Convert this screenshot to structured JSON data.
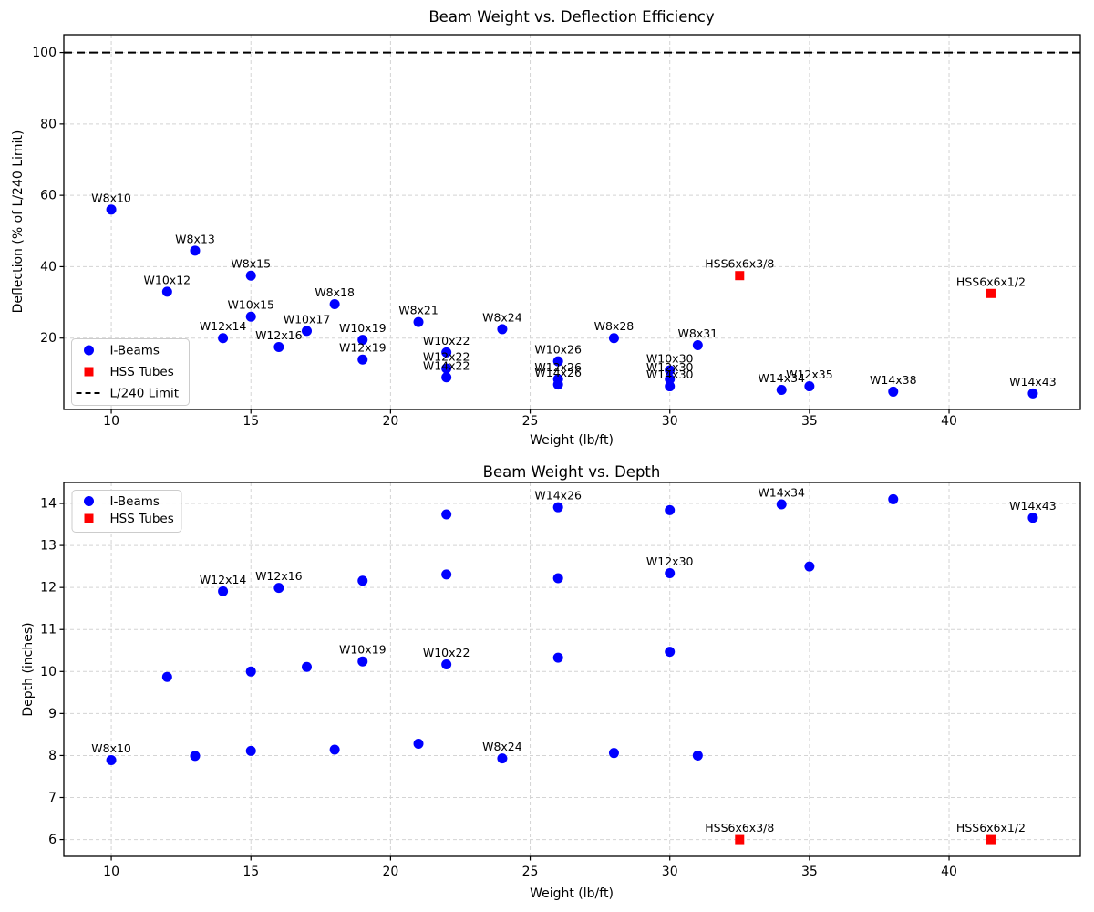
{
  "page": {
    "background": "#ffffff",
    "text_color": "#000000",
    "grid_color": "#d4d4d4",
    "spine_color": "#000000",
    "ibeam_color": "#0000ff",
    "hss_color": "#ff0000"
  },
  "chart_data": [
    {
      "type": "scatter",
      "title": "Beam Weight vs. Deflection Efficiency",
      "xlabel": "Weight (lb/ft)",
      "ylabel": "Deflection (% of L/240 Limit)",
      "xlim": [
        8.3,
        44.7
      ],
      "ylim": [
        0,
        105
      ],
      "xticks": [
        10,
        15,
        20,
        25,
        30,
        35,
        40
      ],
      "yticks": [
        20,
        40,
        60,
        80,
        100
      ],
      "grid": true,
      "legend_position": "lower-left",
      "legend": [
        {
          "label": "I-Beams",
          "marker": "circle",
          "color": "#0000ff"
        },
        {
          "label": "HSS Tubes",
          "marker": "square",
          "color": "#ff0000"
        },
        {
          "label": "L/240 Limit",
          "marker": "dashed-line",
          "color": "#000000"
        }
      ],
      "limit_line": {
        "y": 100,
        "label": "L/240 Limit",
        "style": "dashed",
        "color": "#000000"
      },
      "series": [
        {
          "name": "I-Beams",
          "marker": "circle",
          "color": "#0000ff",
          "points": [
            {
              "label": "W8x10",
              "x": 10,
              "y": 56,
              "show_label": true
            },
            {
              "label": "W10x12",
              "x": 12,
              "y": 33,
              "show_label": true
            },
            {
              "label": "W8x13",
              "x": 13,
              "y": 44.5,
              "show_label": true
            },
            {
              "label": "W12x14",
              "x": 14,
              "y": 20,
              "show_label": true
            },
            {
              "label": "W8x15",
              "x": 15,
              "y": 37.5,
              "show_label": true
            },
            {
              "label": "W10x15",
              "x": 15,
              "y": 26,
              "show_label": true
            },
            {
              "label": "W12x16",
              "x": 16,
              "y": 17.5,
              "show_label": true
            },
            {
              "label": "W10x17",
              "x": 17,
              "y": 22,
              "show_label": true
            },
            {
              "label": "W8x18",
              "x": 18,
              "y": 29.5,
              "show_label": true
            },
            {
              "label": "W10x19",
              "x": 19,
              "y": 19.5,
              "show_label": true
            },
            {
              "label": "W12x19",
              "x": 19,
              "y": 14,
              "show_label": true
            },
            {
              "label": "W8x21",
              "x": 21,
              "y": 24.5,
              "show_label": true
            },
            {
              "label": "W10x22",
              "x": 22,
              "y": 16,
              "show_label": true
            },
            {
              "label": "W12x22",
              "x": 22,
              "y": 11.5,
              "show_label": true
            },
            {
              "label": "W14x22",
              "x": 22,
              "y": 9,
              "show_label": true
            },
            {
              "label": "W8x24",
              "x": 24,
              "y": 22.5,
              "show_label": true
            },
            {
              "label": "W10x26",
              "x": 26,
              "y": 13.5,
              "show_label": true
            },
            {
              "label": "W12x26",
              "x": 26,
              "y": 8.5,
              "show_label": true
            },
            {
              "label": "W14x26",
              "x": 26,
              "y": 7,
              "show_label": true
            },
            {
              "label": "W8x28",
              "x": 28,
              "y": 20,
              "show_label": true
            },
            {
              "label": "W10x30",
              "x": 30,
              "y": 11,
              "show_label": true
            },
            {
              "label": "W12x30",
              "x": 30,
              "y": 8.5,
              "show_label": true
            },
            {
              "label": "W14x30",
              "x": 30,
              "y": 6.5,
              "show_label": true
            },
            {
              "label": "W8x31",
              "x": 31,
              "y": 18,
              "show_label": true
            },
            {
              "label": "W14x34",
              "x": 34,
              "y": 5.5,
              "show_label": true
            },
            {
              "label": "W12x35",
              "x": 35,
              "y": 6.5,
              "show_label": true
            },
            {
              "label": "W14x38",
              "x": 38,
              "y": 5,
              "show_label": true
            },
            {
              "label": "W14x43",
              "x": 43,
              "y": 4.5,
              "show_label": true
            }
          ]
        },
        {
          "name": "HSS Tubes",
          "marker": "square",
          "color": "#ff0000",
          "points": [
            {
              "label": "HSS6x6x3/8",
              "x": 32.5,
              "y": 37.5,
              "show_label": true
            },
            {
              "label": "HSS6x6x1/2",
              "x": 41.5,
              "y": 32.5,
              "show_label": true
            }
          ]
        }
      ]
    },
    {
      "type": "scatter",
      "title": "Beam Weight vs. Depth",
      "xlabel": "Weight (lb/ft)",
      "ylabel": "Depth (inches)",
      "xlim": [
        8.3,
        44.7
      ],
      "ylim": [
        5.6,
        14.5
      ],
      "xticks": [
        10,
        15,
        20,
        25,
        30,
        35,
        40
      ],
      "yticks": [
        6,
        7,
        8,
        9,
        10,
        11,
        12,
        13,
        14
      ],
      "grid": true,
      "legend_position": "upper-left",
      "legend": [
        {
          "label": "I-Beams",
          "marker": "circle",
          "color": "#0000ff"
        },
        {
          "label": "HSS Tubes",
          "marker": "square",
          "color": "#ff0000"
        }
      ],
      "series": [
        {
          "name": "I-Beams",
          "marker": "circle",
          "color": "#0000ff",
          "points": [
            {
              "label": "W8x10",
              "x": 10,
              "y": 7.89,
              "show_label": true
            },
            {
              "label": "W10x12",
              "x": 12,
              "y": 9.87,
              "show_label": false
            },
            {
              "label": "W8x13",
              "x": 13,
              "y": 7.99,
              "show_label": false
            },
            {
              "label": "W12x14",
              "x": 14,
              "y": 11.91,
              "show_label": true
            },
            {
              "label": "W8x15",
              "x": 15,
              "y": 8.11,
              "show_label": false
            },
            {
              "label": "W10x15",
              "x": 15,
              "y": 10.0,
              "show_label": false
            },
            {
              "label": "W12x16",
              "x": 16,
              "y": 11.99,
              "show_label": true
            },
            {
              "label": "W10x17",
              "x": 17,
              "y": 10.11,
              "show_label": false
            },
            {
              "label": "W8x18",
              "x": 18,
              "y": 8.14,
              "show_label": false
            },
            {
              "label": "W10x19",
              "x": 19,
              "y": 10.24,
              "show_label": true
            },
            {
              "label": "W12x19",
              "x": 19,
              "y": 12.16,
              "show_label": false
            },
            {
              "label": "W8x21",
              "x": 21,
              "y": 8.28,
              "show_label": false
            },
            {
              "label": "W10x22",
              "x": 22,
              "y": 10.17,
              "show_label": true
            },
            {
              "label": "W12x22",
              "x": 22,
              "y": 12.31,
              "show_label": false
            },
            {
              "label": "W14x22",
              "x": 22,
              "y": 13.74,
              "show_label": false
            },
            {
              "label": "W8x24",
              "x": 24,
              "y": 7.93,
              "show_label": true
            },
            {
              "label": "W10x26",
              "x": 26,
              "y": 10.33,
              "show_label": false
            },
            {
              "label": "W12x26",
              "x": 26,
              "y": 12.22,
              "show_label": false
            },
            {
              "label": "W14x26",
              "x": 26,
              "y": 13.91,
              "show_label": true
            },
            {
              "label": "W8x28",
              "x": 28,
              "y": 8.06,
              "show_label": false
            },
            {
              "label": "W10x30",
              "x": 30,
              "y": 10.47,
              "show_label": false
            },
            {
              "label": "W12x30",
              "x": 30,
              "y": 12.34,
              "show_label": true
            },
            {
              "label": "W14x30",
              "x": 30,
              "y": 13.84,
              "show_label": false
            },
            {
              "label": "W8x31",
              "x": 31,
              "y": 8.0,
              "show_label": false
            },
            {
              "label": "W14x34",
              "x": 34,
              "y": 13.98,
              "show_label": true
            },
            {
              "label": "W12x35",
              "x": 35,
              "y": 12.5,
              "show_label": false
            },
            {
              "label": "W14x38",
              "x": 38,
              "y": 14.1,
              "show_label": false
            },
            {
              "label": "W14x43",
              "x": 43,
              "y": 13.66,
              "show_label": true
            }
          ]
        },
        {
          "name": "HSS Tubes",
          "marker": "square",
          "color": "#ff0000",
          "points": [
            {
              "label": "HSS6x6x3/8",
              "x": 32.5,
              "y": 6.0,
              "show_label": true
            },
            {
              "label": "HSS6x6x1/2",
              "x": 41.5,
              "y": 6.0,
              "show_label": true
            }
          ]
        }
      ]
    }
  ]
}
